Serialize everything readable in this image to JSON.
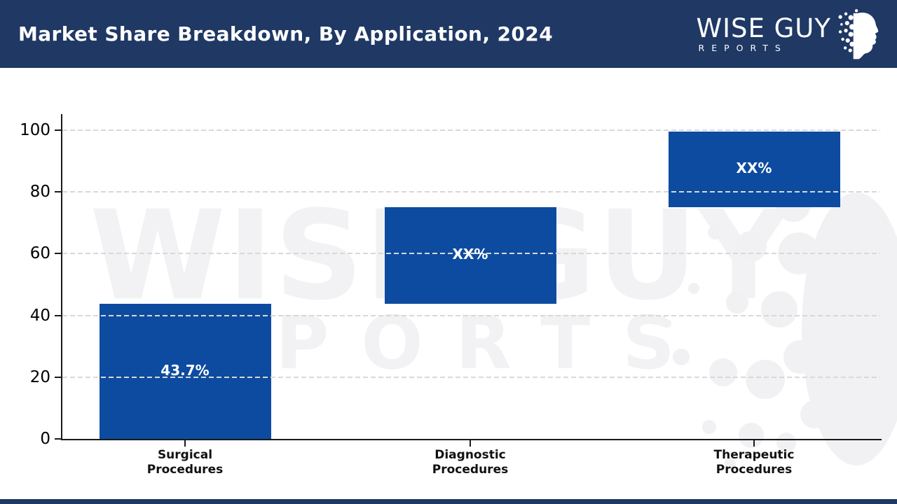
{
  "header": {
    "title": "Market Share Breakdown, By Application, 2024",
    "logo": {
      "line1": "WISE GUY",
      "line2": "REPORTS"
    }
  },
  "watermark": {
    "line1": "WISE GUY",
    "line2": "REPORTS"
  },
  "colors": {
    "header_bg": "#1f3864",
    "footer_bg": "#1f3864",
    "bar": "#0d4ba0",
    "grid": "#d8d8d8",
    "axis": "#1a1a1a",
    "watermark": "#f2f2f4",
    "bar_label": "#ffffff"
  },
  "chart_data": {
    "type": "bar",
    "variant": "floating-stacked-breakdown",
    "title": "Market Share Breakdown, By Application, 2024",
    "categories": [
      "Surgical Procedures",
      "Diagnostic Procedures",
      "Therapeutic Procedures"
    ],
    "category_lines": [
      [
        "Surgical",
        "Procedures"
      ],
      [
        "Diagnostic",
        "Procedures"
      ],
      [
        "Therapeutic",
        "Procedures"
      ]
    ],
    "bars": [
      {
        "category": "Surgical Procedures",
        "from": 0,
        "to": 43.7,
        "label": "43.7%"
      },
      {
        "category": "Diagnostic Procedures",
        "from": 43.7,
        "to": 75.0,
        "label": "XX%"
      },
      {
        "category": "Therapeutic Procedures",
        "from": 75.0,
        "to": 99.5,
        "label": "XX%"
      }
    ],
    "ylabel": "",
    "xlabel": "",
    "yticks": [
      0,
      20,
      40,
      60,
      80,
      100
    ],
    "ylim": [
      0,
      105
    ],
    "grid": "dashed horizontal, drawn over bars",
    "legend": "none"
  }
}
